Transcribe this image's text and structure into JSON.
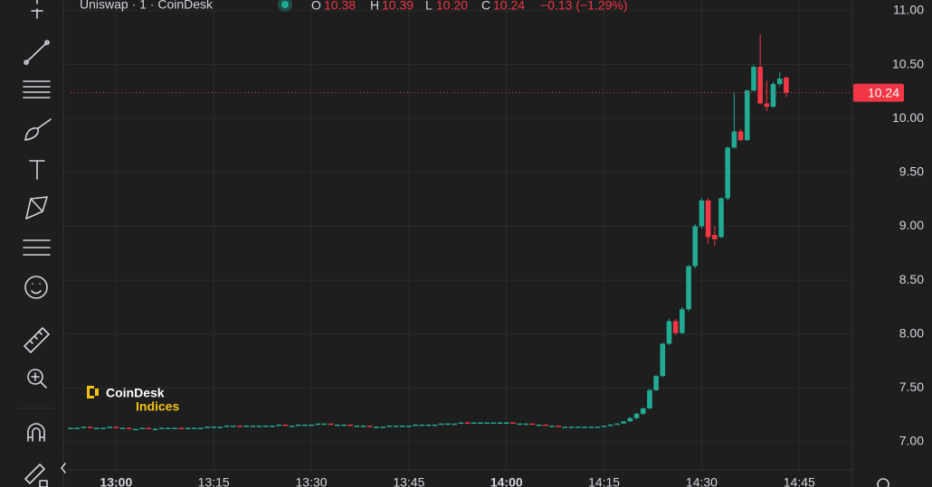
{
  "header": {
    "symbol": "Uniswap · 1 · CoinDesk",
    "o_label": "O",
    "o": "10.38",
    "h_label": "H",
    "h": "10.39",
    "l_label": "L",
    "l": "10.20",
    "c_label": "C",
    "c": "10.24",
    "change": "−0.13 (−1.29%)"
  },
  "logo": {
    "name": "CoinDesk",
    "sub": "Indices"
  },
  "chart_data": {
    "type": "candlestick",
    "x": [
      "12:53",
      "12:54",
      "12:55",
      "12:56",
      "12:57",
      "12:58",
      "12:59",
      "13:00",
      "13:01",
      "13:02",
      "13:03",
      "13:04",
      "13:05",
      "13:06",
      "13:07",
      "13:08",
      "13:09",
      "13:10",
      "13:11",
      "13:12",
      "13:13",
      "13:14",
      "13:15",
      "13:16",
      "13:17",
      "13:18",
      "13:19",
      "13:20",
      "13:21",
      "13:22",
      "13:23",
      "13:24",
      "13:25",
      "13:26",
      "13:27",
      "13:28",
      "13:29",
      "13:30",
      "13:31",
      "13:32",
      "13:33",
      "13:34",
      "13:35",
      "13:36",
      "13:37",
      "13:38",
      "13:39",
      "13:40",
      "13:41",
      "13:42",
      "13:43",
      "13:44",
      "13:45",
      "13:46",
      "13:47",
      "13:48",
      "13:49",
      "13:50",
      "13:51",
      "13:52",
      "13:53",
      "13:54",
      "13:55",
      "13:56",
      "13:57",
      "13:58",
      "13:59",
      "14:00",
      "14:01",
      "14:02",
      "14:03",
      "14:04",
      "14:05",
      "14:06",
      "14:07",
      "14:08",
      "14:09",
      "14:10",
      "14:11",
      "14:12",
      "14:13",
      "14:14",
      "14:15",
      "14:16",
      "14:17",
      "14:18",
      "14:19",
      "14:20",
      "14:21",
      "14:22",
      "14:23",
      "14:24",
      "14:25",
      "14:26",
      "14:27",
      "14:28",
      "14:29",
      "14:30",
      "14:31",
      "14:32",
      "14:33",
      "14:34",
      "14:35",
      "14:36",
      "14:37",
      "14:38",
      "14:39",
      "14:40",
      "14:41",
      "14:42",
      "14:43"
    ],
    "open": [
      7.13,
      7.13,
      7.13,
      7.14,
      7.13,
      7.13,
      7.13,
      7.14,
      7.13,
      7.13,
      7.12,
      7.12,
      7.13,
      7.12,
      7.12,
      7.13,
      7.13,
      7.13,
      7.12,
      7.13,
      7.13,
      7.13,
      7.14,
      7.14,
      7.14,
      7.15,
      7.15,
      7.14,
      7.15,
      7.15,
      7.15,
      7.15,
      7.15,
      7.16,
      7.15,
      7.15,
      7.16,
      7.16,
      7.16,
      7.17,
      7.17,
      7.16,
      7.16,
      7.16,
      7.15,
      7.15,
      7.15,
      7.14,
      7.14,
      7.14,
      7.15,
      7.15,
      7.15,
      7.15,
      7.16,
      7.16,
      7.16,
      7.16,
      7.17,
      7.17,
      7.17,
      7.18,
      7.17,
      7.18,
      7.18,
      7.18,
      7.18,
      7.18,
      7.18,
      7.17,
      7.17,
      7.17,
      7.16,
      7.16,
      7.15,
      7.15,
      7.14,
      7.14,
      7.14,
      7.14,
      7.14,
      7.14,
      7.14,
      7.15,
      7.16,
      7.17,
      7.19,
      7.22,
      7.26,
      7.31,
      7.48,
      7.61,
      7.91,
      8.12,
      8.01,
      8.23,
      8.63,
      9.0,
      9.24,
      8.92,
      8.9,
      9.26,
      9.73,
      9.88,
      9.8,
      10.26,
      10.48,
      10.14,
      10.11,
      10.32,
      10.38
    ],
    "high": [
      7.13,
      7.13,
      7.14,
      7.14,
      7.13,
      7.13,
      7.14,
      7.14,
      7.13,
      7.13,
      7.12,
      7.13,
      7.13,
      7.13,
      7.13,
      7.13,
      7.13,
      7.13,
      7.13,
      7.13,
      7.13,
      7.14,
      7.14,
      7.14,
      7.15,
      7.15,
      7.15,
      7.15,
      7.15,
      7.15,
      7.15,
      7.15,
      7.16,
      7.16,
      7.15,
      7.16,
      7.16,
      7.16,
      7.17,
      7.17,
      7.17,
      7.16,
      7.16,
      7.16,
      7.15,
      7.15,
      7.15,
      7.14,
      7.14,
      7.15,
      7.15,
      7.15,
      7.15,
      7.16,
      7.16,
      7.16,
      7.16,
      7.17,
      7.17,
      7.17,
      7.18,
      7.18,
      7.18,
      7.18,
      7.18,
      7.18,
      7.18,
      7.18,
      7.18,
      7.17,
      7.17,
      7.17,
      7.16,
      7.16,
      7.15,
      7.15,
      7.14,
      7.14,
      7.14,
      7.14,
      7.14,
      7.14,
      7.15,
      7.16,
      7.17,
      7.19,
      7.23,
      7.27,
      7.32,
      7.49,
      7.62,
      7.92,
      8.14,
      8.14,
      8.25,
      8.64,
      9.02,
      9.26,
      9.26,
      9.0,
      9.27,
      9.74,
      10.24,
      9.9,
      10.27,
      10.5,
      10.78,
      10.35,
      10.34,
      10.43,
      10.39
    ],
    "low": [
      7.13,
      7.13,
      7.13,
      7.13,
      7.13,
      7.13,
      7.13,
      7.13,
      7.13,
      7.12,
      7.12,
      7.12,
      7.12,
      7.12,
      7.12,
      7.13,
      7.13,
      7.12,
      7.12,
      7.13,
      7.13,
      7.13,
      7.14,
      7.14,
      7.14,
      7.15,
      7.14,
      7.14,
      7.15,
      7.15,
      7.15,
      7.15,
      7.15,
      7.15,
      7.15,
      7.15,
      7.16,
      7.16,
      7.16,
      7.17,
      7.16,
      7.16,
      7.16,
      7.15,
      7.15,
      7.15,
      7.14,
      7.14,
      7.14,
      7.14,
      7.15,
      7.15,
      7.15,
      7.15,
      7.16,
      7.16,
      7.16,
      7.16,
      7.17,
      7.17,
      7.17,
      7.17,
      7.17,
      7.18,
      7.18,
      7.18,
      7.18,
      7.18,
      7.17,
      7.17,
      7.17,
      7.16,
      7.16,
      7.15,
      7.15,
      7.14,
      7.14,
      7.14,
      7.14,
      7.14,
      7.14,
      7.14,
      7.14,
      7.15,
      7.16,
      7.17,
      7.19,
      7.21,
      7.25,
      7.3,
      7.47,
      7.6,
      7.9,
      7.99,
      8.0,
      8.21,
      8.61,
      8.98,
      8.84,
      8.82,
      8.89,
      9.24,
      9.72,
      9.79,
      9.79,
      10.25,
      10.13,
      10.07,
      10.1,
      10.3,
      10.2
    ],
    "close": [
      7.13,
      7.13,
      7.14,
      7.13,
      7.13,
      7.13,
      7.14,
      7.13,
      7.13,
      7.12,
      7.12,
      7.13,
      7.12,
      7.12,
      7.13,
      7.13,
      7.13,
      7.12,
      7.13,
      7.13,
      7.13,
      7.14,
      7.14,
      7.14,
      7.15,
      7.15,
      7.14,
      7.15,
      7.15,
      7.15,
      7.15,
      7.15,
      7.16,
      7.15,
      7.15,
      7.16,
      7.16,
      7.16,
      7.17,
      7.17,
      7.16,
      7.16,
      7.16,
      7.15,
      7.15,
      7.15,
      7.14,
      7.14,
      7.14,
      7.15,
      7.15,
      7.15,
      7.15,
      7.16,
      7.16,
      7.16,
      7.16,
      7.17,
      7.17,
      7.17,
      7.18,
      7.17,
      7.18,
      7.18,
      7.18,
      7.18,
      7.18,
      7.18,
      7.17,
      7.17,
      7.17,
      7.16,
      7.16,
      7.15,
      7.15,
      7.14,
      7.14,
      7.14,
      7.14,
      7.14,
      7.14,
      7.14,
      7.15,
      7.16,
      7.17,
      7.19,
      7.22,
      7.26,
      7.31,
      7.48,
      7.61,
      7.91,
      8.12,
      8.01,
      8.23,
      8.63,
      9.0,
      9.24,
      8.9,
      8.88,
      9.26,
      9.73,
      9.88,
      9.8,
      10.26,
      10.48,
      10.14,
      10.11,
      10.32,
      10.37,
      10.24
    ],
    "up_color": "#22ab94",
    "down_color": "#f23645",
    "xlim": [
      "12:53",
      "14:54"
    ],
    "xticks": [
      "13:00",
      "13:15",
      "13:30",
      "13:45",
      "14:00",
      "14:15",
      "14:30",
      "14:45"
    ],
    "ylim": [
      6.74,
      11.1
    ],
    "yticks": [
      {
        "value": 7,
        "label": "7.00"
      },
      {
        "value": 7.5,
        "label": "7.50"
      },
      {
        "value": 8,
        "label": "8.00"
      },
      {
        "value": 8.5,
        "label": "8.50"
      },
      {
        "value": 9,
        "label": "9.00"
      },
      {
        "value": 9.5,
        "label": "9.50"
      },
      {
        "value": 10,
        "label": "10.00"
      },
      {
        "value": 10.5,
        "label": "10.50"
      },
      {
        "value": 11,
        "label": "11.00"
      }
    ],
    "last_price": {
      "value": 10.24,
      "label": "10.24"
    },
    "grid": true
  }
}
